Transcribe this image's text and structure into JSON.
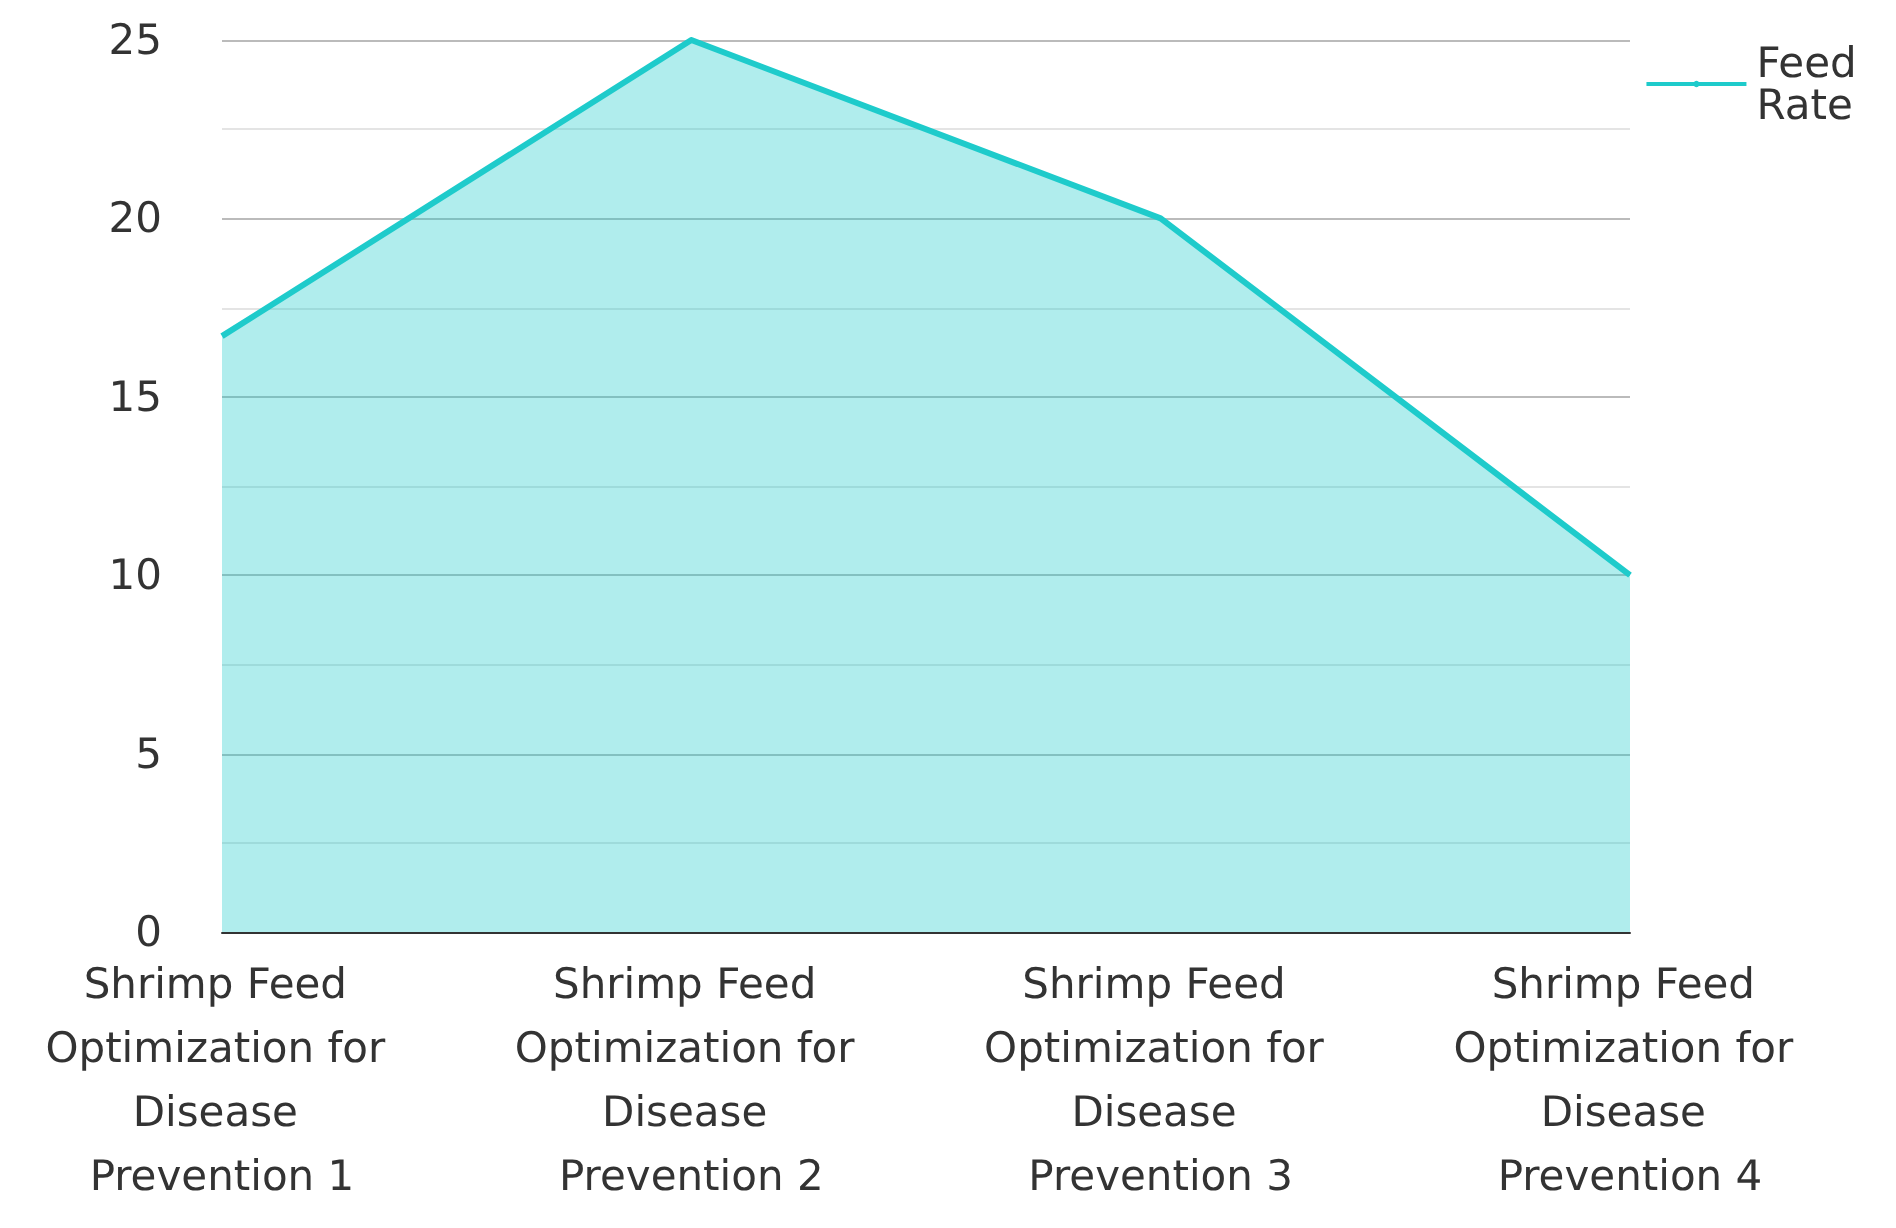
{
  "chart_data": {
    "type": "area",
    "categories": [
      "Shrimp Feed Optimization for Disease Prevention 1",
      "Shrimp Feed Optimization for Disease Prevention 2",
      "Shrimp Feed Optimization for Disease Prevention 3",
      "Shrimp Feed Optimization for Disease Prevention 4"
    ],
    "series": [
      {
        "name": "Feed Rate",
        "color": "#1ecbcb",
        "values": [
          16.7,
          25,
          20,
          10
        ]
      }
    ],
    "ylim": [
      0,
      25
    ],
    "yticks": [
      0,
      5,
      10,
      15,
      20,
      25
    ],
    "grid": true,
    "legend": "top right"
  }
}
